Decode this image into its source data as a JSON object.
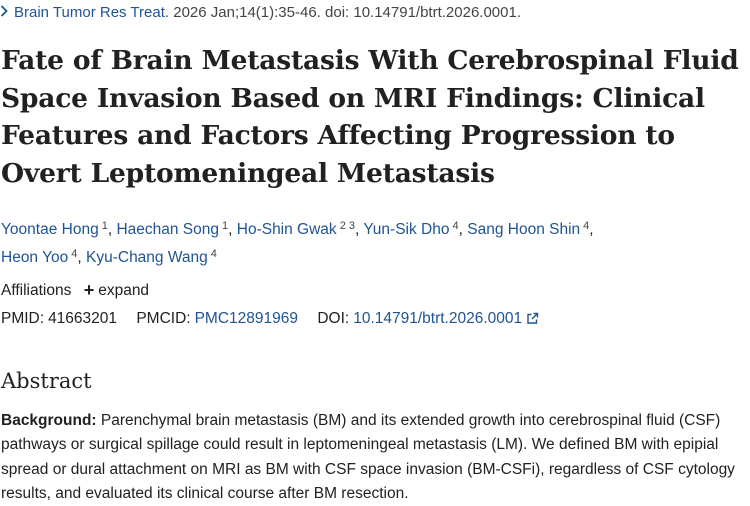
{
  "citation": {
    "journal": "Brain Tumor Res Treat.",
    "details": "2026 Jan;14(1):35-46. doi: 10.14791/btrt.2026.0001."
  },
  "title": "Fate of Brain Metastasis With Cerebrospinal Fluid Space Invasion Based on MRI Findings: Clinical Features and Factors Affecting Progression to Overt Leptomeningeal Metastasis",
  "authors": [
    {
      "name": "Yoontae Hong",
      "aff": "1"
    },
    {
      "name": "Haechan Song",
      "aff": "1"
    },
    {
      "name": "Ho-Shin Gwak",
      "aff": "2 3"
    },
    {
      "name": "Yun-Sik Dho",
      "aff": "4"
    },
    {
      "name": "Sang Hoon Shin",
      "aff": "4"
    },
    {
      "name": "Heon Yoo",
      "aff": "4"
    },
    {
      "name": "Kyu-Chang Wang",
      "aff": "4"
    }
  ],
  "affiliations": {
    "label": "Affiliations",
    "expand_label": "expand"
  },
  "ids": {
    "pmid_label": "PMID:",
    "pmid": "41663201",
    "pmcid_label": "PMCID:",
    "pmcid": "PMC12891969",
    "doi_label": "DOI:",
    "doi": "10.14791/btrt.2026.0001"
  },
  "abstract": {
    "heading": "Abstract",
    "background_label": "Background:",
    "background_text": "Parenchymal brain metastasis (BM) and its extended growth into cerebrospinal fluid (CSF) pathways or surgical spillage could result in leptomeningeal metastasis (LM). We defined BM with epipial spread or dural attachment on MRI as BM with CSF space invasion (BM-CSFi), regardless of CSF cytology results, and evaluated its clinical course after BM resection."
  },
  "colors": {
    "link": "#205493",
    "text": "#212121"
  }
}
